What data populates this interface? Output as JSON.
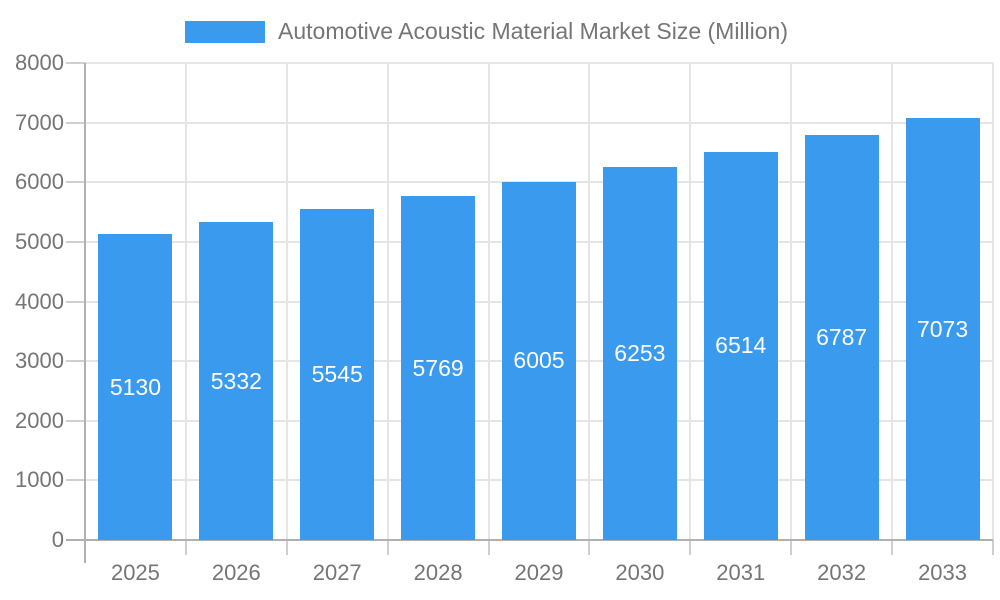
{
  "chart_data": {
    "type": "bar",
    "title": "Automotive Acoustic Material Market Size (Million)",
    "legend": {
      "position": "top",
      "entries": [
        "Automotive Acoustic Material Market Size (Million)"
      ]
    },
    "categories": [
      "2025",
      "2026",
      "2027",
      "2028",
      "2029",
      "2030",
      "2031",
      "2032",
      "2033"
    ],
    "values": [
      5130,
      5332,
      5545,
      5769,
      6005,
      6253,
      6514,
      6787,
      7073
    ],
    "value_labels": [
      "5130",
      "5332",
      "5545",
      "5769",
      "6005",
      "6253",
      "6514",
      "6787",
      "7073"
    ],
    "xlabel": "",
    "ylabel": "",
    "ylim": [
      0,
      8000
    ],
    "ytick_interval": 1000,
    "ytick_labels": [
      "0",
      "1000",
      "2000",
      "3000",
      "4000",
      "5000",
      "6000",
      "7000",
      "8000"
    ],
    "grid": true,
    "colors": {
      "bar": "#399AEE",
      "axis_line": "#B0B0B0",
      "gridline": "#E5E5E5",
      "tick": "#CFCFCF",
      "axis_text": "#757575",
      "bar_label_text": "#FFFFFF",
      "background": "#FFFFFF"
    }
  }
}
